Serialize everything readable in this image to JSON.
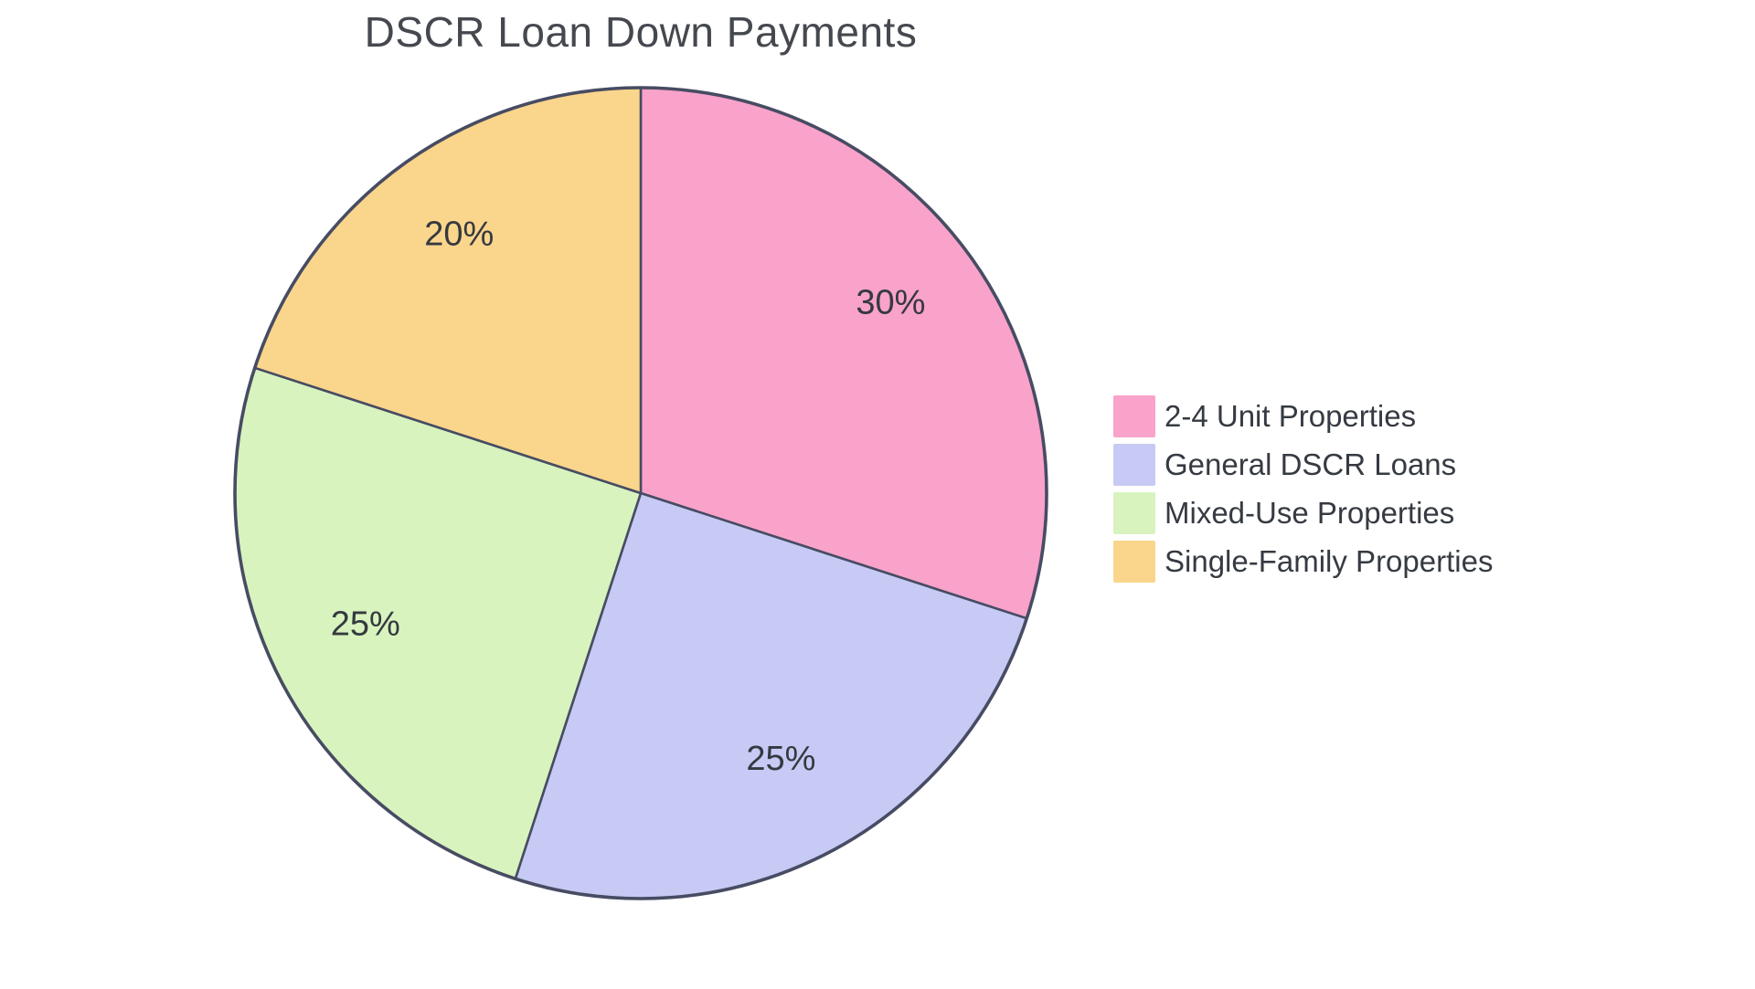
{
  "chart_data": {
    "type": "pie",
    "title": "DSCR Loan Down Payments",
    "categories": [
      "2-4 Unit Properties",
      "General DSCR Loans",
      "Mixed-Use Properties",
      "Single-Family Properties"
    ],
    "values": [
      30,
      25,
      25,
      20
    ],
    "value_labels": [
      "30%",
      "25%",
      "25%",
      "20%"
    ],
    "series": [
      {
        "label": "2-4 Unit Properties",
        "value": 30,
        "value_label": "30%",
        "color": "#F9A2CA"
      },
      {
        "label": "General DSCR Loans",
        "value": 25,
        "value_label": "25%",
        "color": "#C6CAF4"
      },
      {
        "label": "Mixed-Use Properties",
        "value": 25,
        "value_label": "25%",
        "color": "#D8F3BE"
      },
      {
        "label": "Single-Family Properties",
        "value": 20,
        "value_label": "20%",
        "color": "#FAD58C"
      }
    ],
    "legend_position": "right",
    "start_angle": "12-o-clock",
    "direction": "clockwise",
    "stroke_color": "#474C63",
    "label_color": "#35393F",
    "title_color": "#45494F",
    "background_color": "#FFFFFF"
  }
}
